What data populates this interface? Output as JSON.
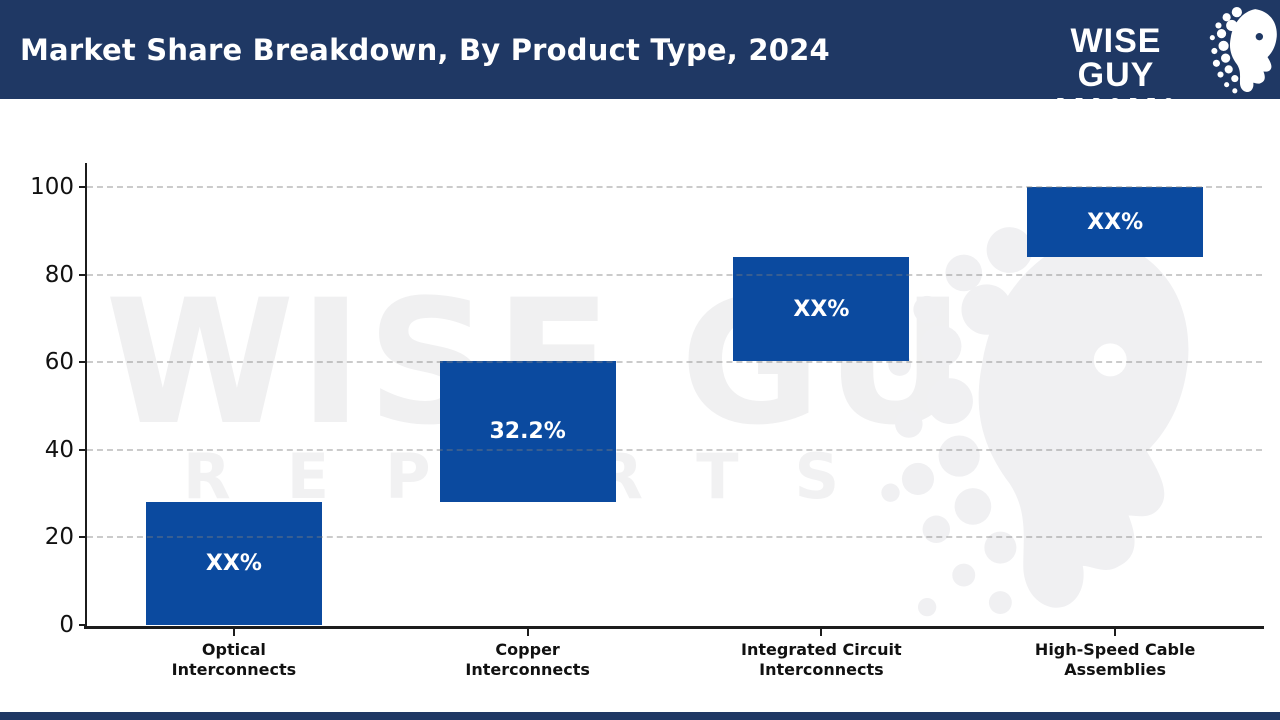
{
  "header": {
    "title": "Market Share Breakdown, By Product Type, 2024",
    "bg_color": "#1f3864",
    "logo": {
      "line1": "WISE GUY",
      "line2": "REPORTS"
    }
  },
  "watermark": {
    "line1": "WISE GUY",
    "line2": "REPORTS"
  },
  "chart_data": {
    "type": "bar",
    "subtype": "waterfall",
    "title": "Market Share Breakdown, By Product Type, 2024",
    "categories": [
      "Optical Interconnects",
      "Copper Interconnects",
      "Integrated Circuit Interconnects",
      "High-Speed Cable Assemblies"
    ],
    "bars": [
      {
        "label_lines": [
          "Optical",
          "Interconnects"
        ],
        "start": 0,
        "end": 28,
        "value_label": "XX%"
      },
      {
        "label_lines": [
          "Copper",
          "Interconnects"
        ],
        "start": 28,
        "end": 60.2,
        "value_label": "32.2%"
      },
      {
        "label_lines": [
          "Integrated Circuit",
          "Interconnects"
        ],
        "start": 60.2,
        "end": 84,
        "value_label": "XX%"
      },
      {
        "label_lines": [
          "High-Speed Cable",
          "Assemblies"
        ],
        "start": 84,
        "end": 100,
        "value_label": "XX%"
      }
    ],
    "yticks": [
      0,
      20,
      40,
      60,
      80,
      100
    ],
    "ylim": [
      0,
      105
    ],
    "xlabel": "",
    "ylabel": "",
    "legend": "none",
    "grid": "dashed-horizontal",
    "bar_color": "#0b4a9f",
    "axis_color": "#1c1c1c",
    "grid_color": "rgba(125,125,125,0.40)",
    "watermark_color": "#f0f0f1"
  },
  "footer": {
    "bg_color": "#1f3864"
  }
}
